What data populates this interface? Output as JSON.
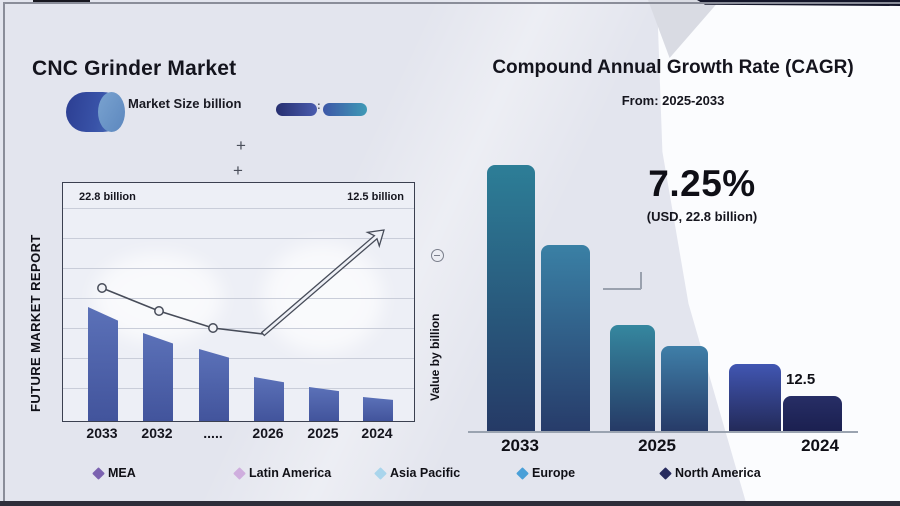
{
  "page": {
    "background": "#e3e5ee",
    "accent_navy": "#232a59",
    "accent_teal": "#2d7e97",
    "bar_blue": "#4c60a8"
  },
  "decor": {
    "plus": "+",
    "colon": ":"
  },
  "icons": {
    "cylinder": "cylinder-3d-marker",
    "pills": "gradient-pill-pair",
    "circle_minus": "circled-minus",
    "trend_arrow": "outlined-up-arrow",
    "legend_marker": "diamond"
  },
  "left_panel": {
    "title": "CNC Grinder Market",
    "market_size_label": "Market Size billion",
    "brand": "FUTURE MARKET REPORT",
    "annotation_left": "22.8 billion",
    "annotation_right": "12.5 billion",
    "x_labels": [
      "2033",
      "2032",
      ".....",
      "2026",
      "2025",
      "2024"
    ],
    "bar_color_top": "#5b71b8",
    "bar_color_bottom": "#42549c",
    "line_color": "#474c59"
  },
  "right_panel": {
    "title": "Compound Annual Growth Rate (CAGR)",
    "subtitle": "From: 2025-2033",
    "cagr_value": "7.25%",
    "cagr_caption": "(USD, 22.8 billion)",
    "value_axis_label": "Value by billion",
    "bar_value_label": "12.5",
    "x_labels": [
      "2033",
      "2025",
      "2024"
    ],
    "bar_gradients": [
      [
        "#2d7e97",
        "#253a66"
      ],
      [
        "#3a80a5",
        "#273c6a"
      ],
      [
        "#35879f",
        "#263a66"
      ],
      [
        "#3f7fa8",
        "#273b68"
      ],
      [
        "#4156b2",
        "#232a59"
      ],
      [
        "#272e66",
        "#1b2050"
      ]
    ]
  },
  "footer_legend": [
    {
      "label": "MEA",
      "color": "#7b62b0"
    },
    {
      "label": "Latin America",
      "color": "#cfaede"
    },
    {
      "label": "Asia Pacific",
      "color": "#a9d5ec"
    },
    {
      "label": "Europe",
      "color": "#4aa0d8"
    },
    {
      "label": "North America",
      "color": "#272b5e"
    }
  ],
  "chart_data": [
    {
      "id": "market-size-by-year",
      "type": "bar",
      "title": "CNC Grinder Market — Market Size billion",
      "categories": [
        "2033",
        "2032",
        ".....",
        "2026",
        "2025",
        "2024"
      ],
      "values_relative": [
        1.0,
        0.77,
        0.63,
        0.39,
        0.3,
        0.21
      ],
      "labeled_points": {
        "2033": 22.8,
        "2024": 12.5
      },
      "unit": "USD billion",
      "ylabel": "",
      "grid": true,
      "overlay": {
        "trend_markers_at": [
          "2033",
          "2032",
          "....."
        ],
        "arrow": "declining dotted-marker line then outlined arrow rising to top-right"
      },
      "note": "stylized infographic; bar heights not drawn to scale of labeled values"
    },
    {
      "id": "cagr-projection",
      "type": "bar",
      "categories": [
        "2033",
        "2025",
        "2024"
      ],
      "series": [
        {
          "name": "primary",
          "values_relative": [
            1.0,
            0.4,
            0.25
          ]
        },
        {
          "name": "secondary",
          "values_relative": [
            0.7,
            0.32,
            0.13
          ]
        }
      ],
      "cagr": "7.25%",
      "period": "2025-2033",
      "labeled_points": {
        "2033": 22.8,
        "2024": 12.5
      },
      "unit": "USD billion",
      "ylabel": "Value by billion",
      "grid": false,
      "note": "grouped bars, teal-to-navy gradient, rounded tops"
    }
  ]
}
